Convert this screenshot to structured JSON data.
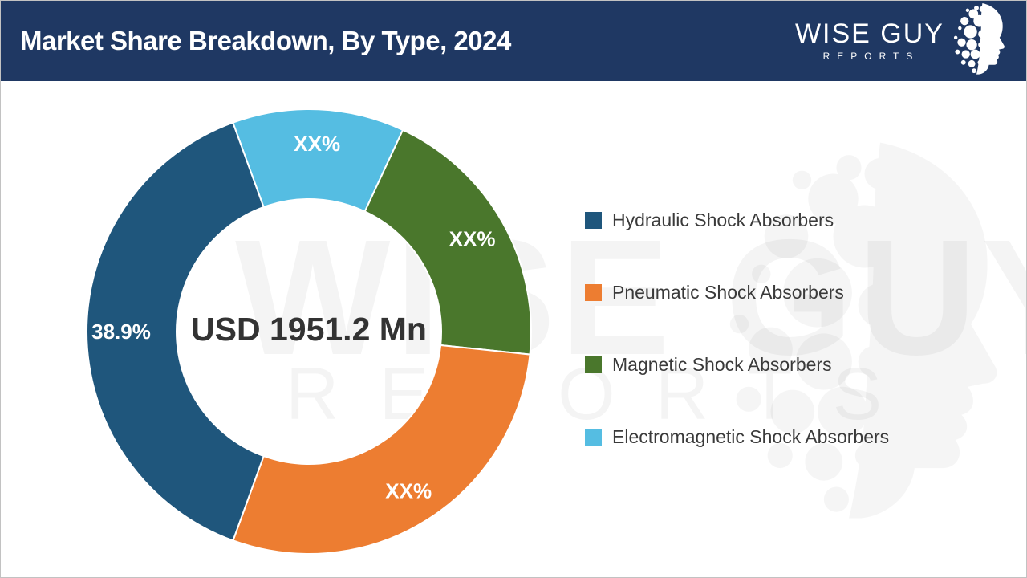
{
  "header": {
    "title": "Market Share Breakdown, By Type, 2024",
    "bg_color": "#1f3863",
    "logo": {
      "line1": "WISE GUY",
      "line2": "REPORTS"
    }
  },
  "chart_data": {
    "type": "pie",
    "donut": true,
    "title": "Market Share Breakdown, By Type, 2024",
    "center_label": "USD 1951.2 Mn",
    "start_angle_deg": -20,
    "slices": [
      {
        "name": "Electromagnetic Shock Absorbers",
        "value_pct": 12.5,
        "label": "XX%",
        "color": "#55bde2"
      },
      {
        "name": "Magnetic Shock Absorbers",
        "value_pct": 19.7,
        "label": "XX%",
        "color": "#4a772c"
      },
      {
        "name": "Pneumatic Shock Absorbers",
        "value_pct": 28.9,
        "label": "XX%",
        "color": "#ed7d31"
      },
      {
        "name": "Hydraulic Shock Absorbers",
        "value_pct": 38.9,
        "label": "38.9%",
        "color": "#1f567c"
      }
    ]
  },
  "legend": {
    "items": [
      {
        "label": "Hydraulic Shock Absorbers",
        "color": "#1f567c"
      },
      {
        "label": "Pneumatic Shock Absorbers",
        "color": "#ed7d31"
      },
      {
        "label": "Magnetic Shock Absorbers",
        "color": "#4a772c"
      },
      {
        "label": "Electromagnetic Shock Absorbers",
        "color": "#55bde2"
      }
    ]
  },
  "watermark": {
    "line1": "WISE GUY",
    "line2": "REPORTS"
  }
}
